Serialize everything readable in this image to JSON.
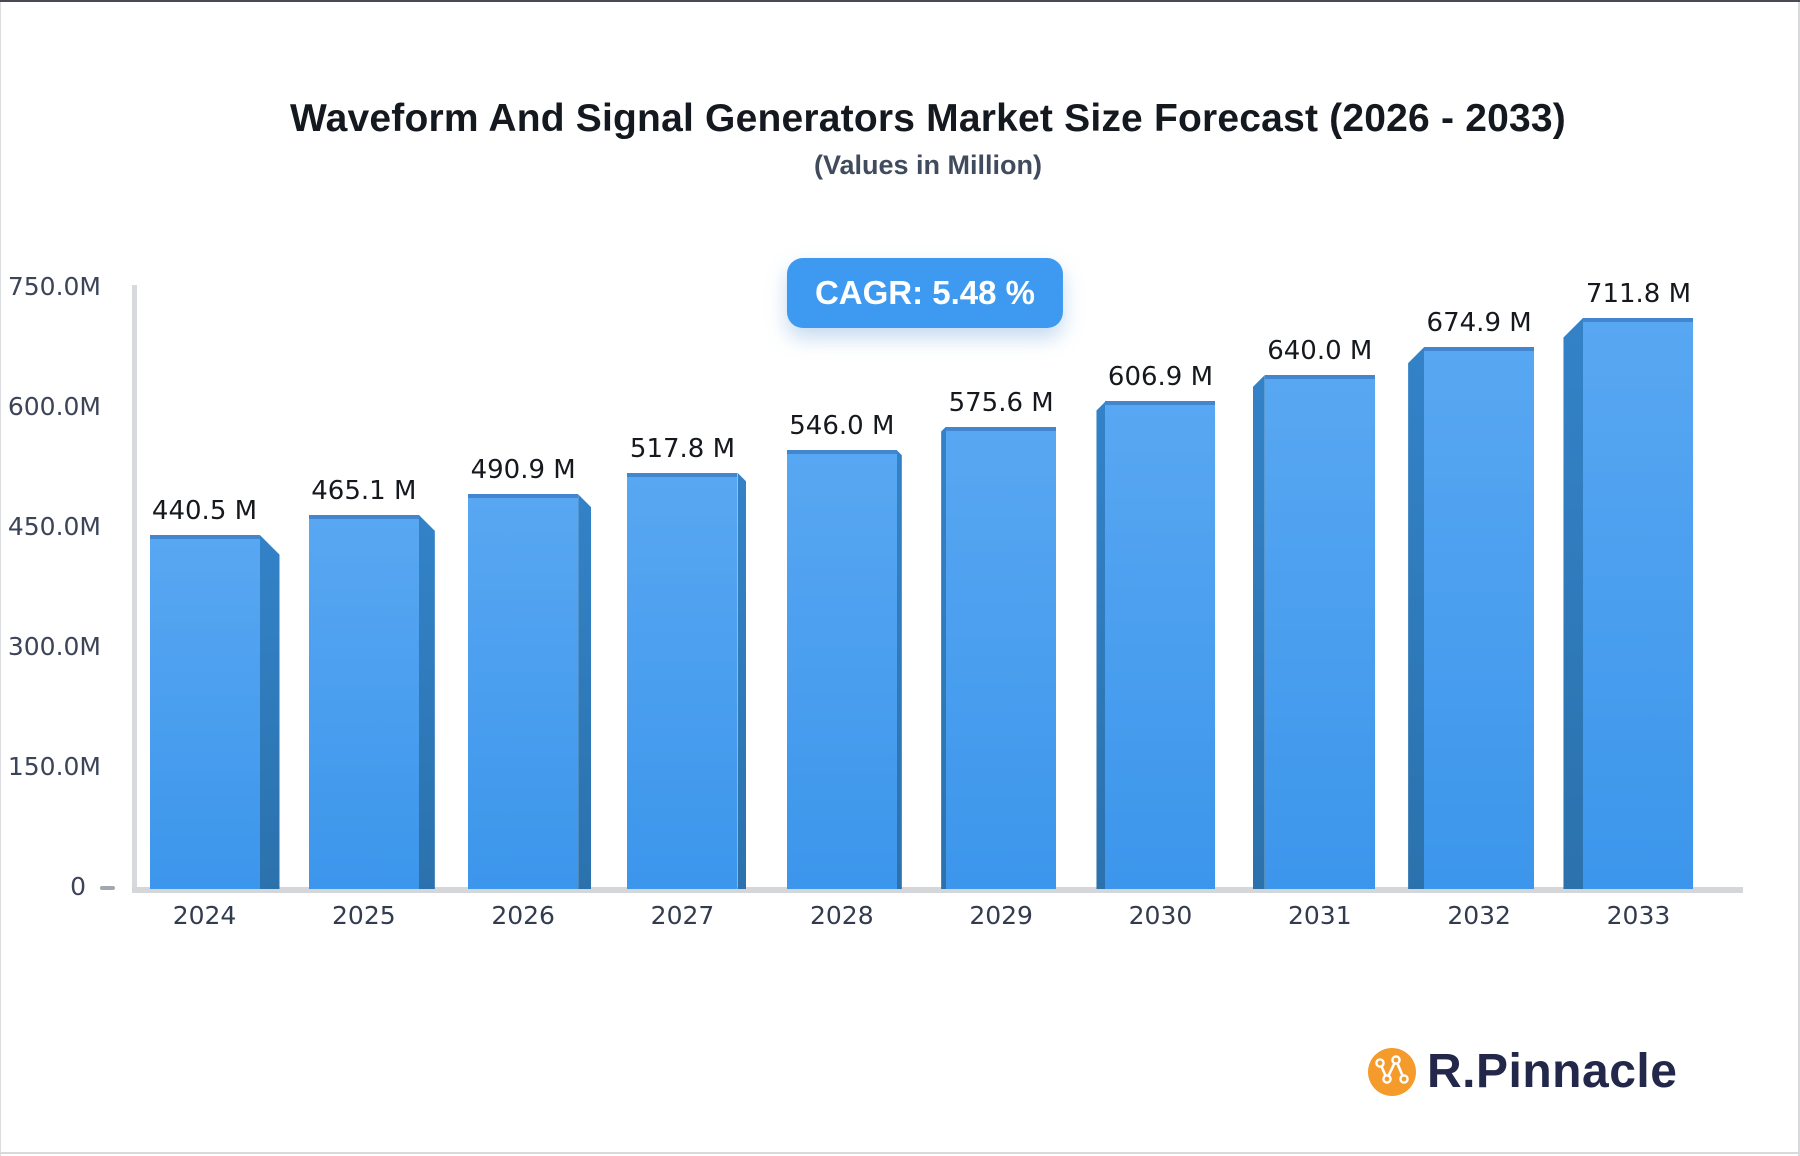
{
  "header": {
    "title": "Waveform And Signal Generators Market Size Forecast (2026 - 2033)",
    "subtitle": "(Values in Million)",
    "cagr_badge": "CAGR: 5.48 %"
  },
  "chart_data": {
    "type": "bar",
    "bar_style": "3d-perspective",
    "title": "Waveform And Signal Generators Market Size Forecast (2026 - 2033)",
    "subtitle": "(Values in Million)",
    "unit": "Million (M)",
    "cagr_percent": 5.48,
    "categories": [
      "2024",
      "2025",
      "2026",
      "2027",
      "2028",
      "2029",
      "2030",
      "2031",
      "2032",
      "2033"
    ],
    "values": [
      440.5,
      465.1,
      490.9,
      517.8,
      546.0,
      575.6,
      606.9,
      640.0,
      674.9,
      711.8
    ],
    "value_labels": [
      "440.5 M",
      "465.1 M",
      "490.9 M",
      "517.8 M",
      "546.0 M",
      "575.6 M",
      "606.9 M",
      "640.0 M",
      "674.9 M",
      "711.8 M"
    ],
    "y_ticks": [
      {
        "label": "750.0M",
        "value": 750
      },
      {
        "label": "600.0M",
        "value": 600
      },
      {
        "label": "450.0M",
        "value": 450
      },
      {
        "label": "300.0M",
        "value": 300
      },
      {
        "label": "150.0M",
        "value": 150
      },
      {
        "label": "0",
        "value": 0
      }
    ],
    "ylim": [
      0,
      750
    ],
    "grid": false,
    "legend": null
  },
  "colors": {
    "bar_top": "#58a7f2",
    "bar_bottom": "#3c96eb",
    "bar_edge": "#4385cf",
    "bar_side_top": "#3382c8",
    "bar_side_bottom": "#2b72ad",
    "accent_badge": "#3d9af0",
    "axis_gray": "#d5d6d9",
    "title_text": "#14181f",
    "label_text": "#333c4f",
    "logo_orange": "#f49b2b",
    "logo_navy": "#23284b"
  },
  "branding": {
    "logo_text": "R.Pinnacle",
    "logo_icon": "zigzag-line-chart-icon"
  }
}
